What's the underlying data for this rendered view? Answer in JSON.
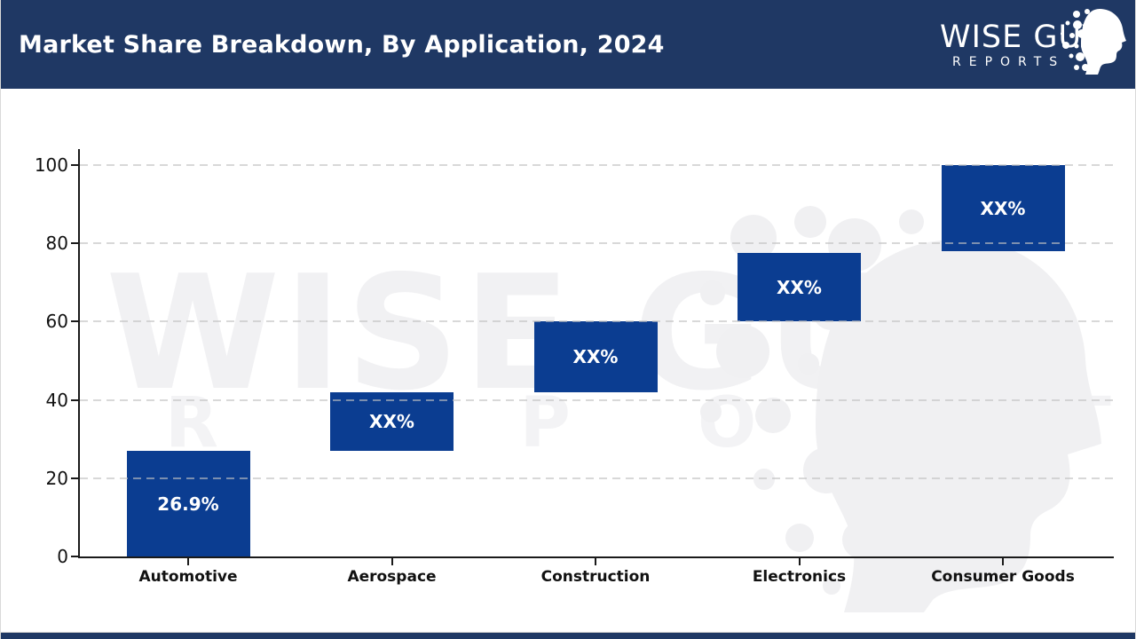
{
  "header": {
    "title": "Market Share Breakdown, By Application, 2024",
    "logo": {
      "line1": "WISE GUY",
      "line2": "REPORTS"
    }
  },
  "watermark": {
    "line1": "WISE GUY",
    "line2": "REPORTS"
  },
  "colors": {
    "header_bg": "#1f3864",
    "bar": "#0b3d91",
    "bar_label": "#ffffff",
    "axis": "#1a1a1a",
    "grid": "#d9d9d9",
    "watermark": "#f1f1f3"
  },
  "chart_data": {
    "type": "bar",
    "variant": "waterfall-floating-bars",
    "title": "Market Share Breakdown, By Application, 2024",
    "xlabel": "",
    "ylabel": "",
    "categories": [
      "Automotive",
      "Aerospace",
      "Construction",
      "Electronics",
      "Consumer Goods"
    ],
    "bars": [
      {
        "category": "Automotive",
        "start": 0,
        "end": 26.9,
        "label": "26.9%"
      },
      {
        "category": "Aerospace",
        "start": 26.9,
        "end": 42,
        "label": "XX%"
      },
      {
        "category": "Construction",
        "start": 42,
        "end": 60,
        "label": "XX%"
      },
      {
        "category": "Electronics",
        "start": 60,
        "end": 77.5,
        "label": "XX%"
      },
      {
        "category": "Consumer Goods",
        "start": 78,
        "end": 100,
        "label": "XX%"
      }
    ],
    "yticks": [
      0,
      20,
      40,
      60,
      80,
      100
    ],
    "ylim": [
      0,
      103.5
    ],
    "grid": "horizontal-dashed",
    "legend": "none"
  }
}
